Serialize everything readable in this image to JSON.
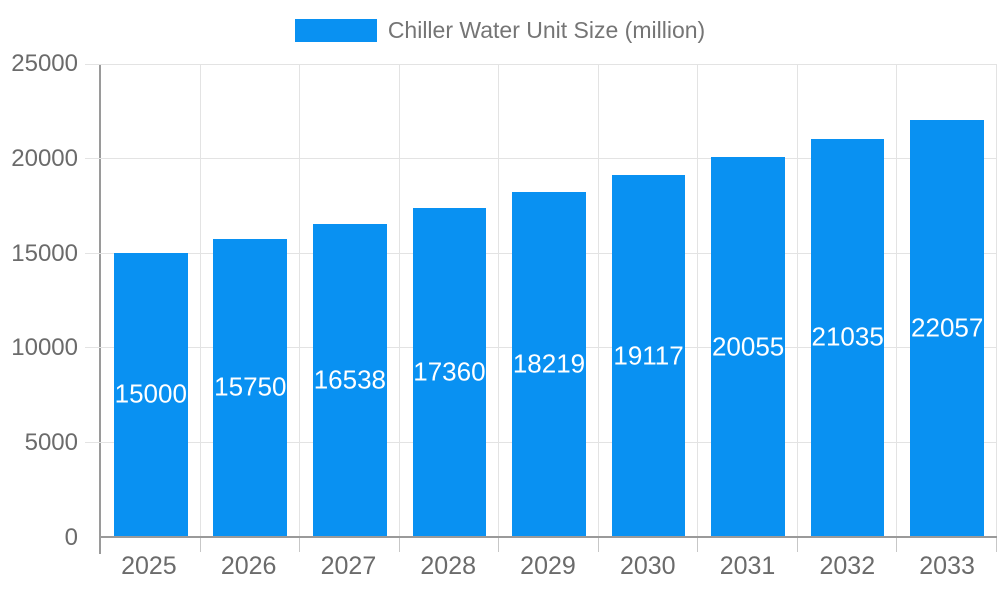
{
  "chart_data": {
    "type": "bar",
    "title": "",
    "legend": "Chiller Water Unit Size (million)",
    "legend_position": "top-center",
    "categories": [
      "2025",
      "2026",
      "2027",
      "2028",
      "2029",
      "2030",
      "2031",
      "2032",
      "2033"
    ],
    "series": [
      {
        "name": "Chiller Water Unit Size (million)",
        "values": [
          15000,
          15750,
          16538,
          17360,
          18219,
          19117,
          20055,
          21035,
          22057
        ]
      }
    ],
    "xlabel": "",
    "ylabel": "",
    "ylim": [
      0,
      25000
    ],
    "yticks": [
      0,
      5000,
      10000,
      15000,
      20000,
      25000
    ],
    "grid": true,
    "bar_labels_visible": true
  },
  "colors": {
    "bar": "#0991F2",
    "bar_label_text": "#ffffff",
    "gridline": "#e3e3e3",
    "boundary_tick": "#c7c7c7",
    "axis_line": "#9a9a9a",
    "tick_text": "#6b6b6b",
    "legend_text": "#757575",
    "background": "#ffffff"
  }
}
